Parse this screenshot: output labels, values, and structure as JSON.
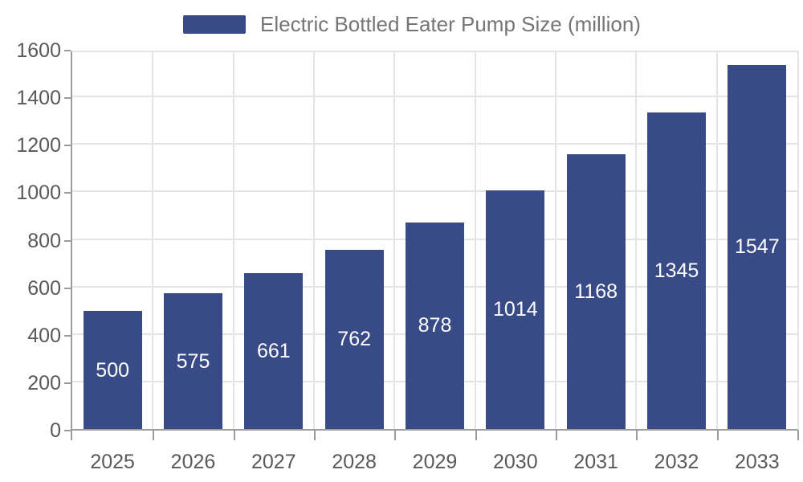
{
  "chart_data": {
    "type": "bar",
    "title": "",
    "legend": {
      "label": "Electric Bottled Eater Pump Size (million)",
      "position": "top"
    },
    "categories": [
      "2025",
      "2026",
      "2027",
      "2028",
      "2029",
      "2030",
      "2031",
      "2032",
      "2033"
    ],
    "series": [
      {
        "name": "Electric Bottled Eater Pump Size (million)",
        "values": [
          500,
          575,
          661,
          762,
          878,
          1014,
          1168,
          1345,
          1547
        ]
      }
    ],
    "value_labels_shown": true,
    "xlabel": "",
    "ylabel": "",
    "ylim": [
      0,
      1600
    ],
    "yticks": [
      0,
      200,
      400,
      600,
      800,
      1000,
      1200,
      1400,
      1600
    ],
    "grid": true,
    "colors": {
      "bar": "#394B87",
      "bar_label": "#FFFFFF",
      "axis_line": "#9C9C9C",
      "gridline": "#E4E4E4",
      "tick_label": "#595959",
      "legend_text": "#757575",
      "background": "#FFFFFF"
    }
  }
}
